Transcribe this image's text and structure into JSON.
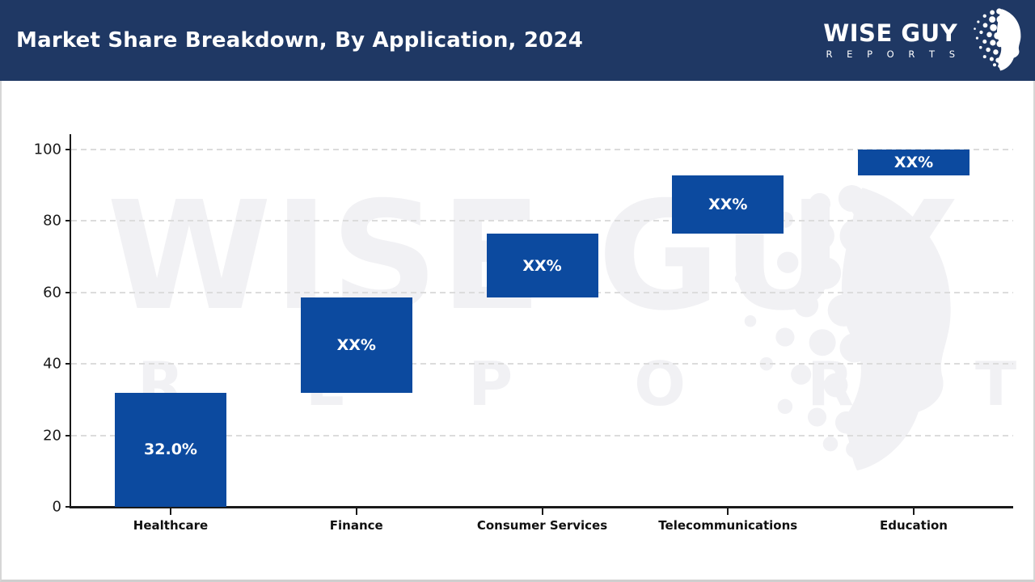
{
  "header": {
    "title": "Market Share Breakdown, By Application, 2024",
    "logo": {
      "primary": "WISE GUY",
      "secondary": "R E P O R T S"
    }
  },
  "watermark": {
    "primary": "WISE GUY",
    "secondary": "REPORTS"
  },
  "chart_data": {
    "type": "bar",
    "subtype": "waterfall",
    "title": "Market Share Breakdown, By Application, 2024",
    "categories": [
      "Healthcare",
      "Finance",
      "Consumer Services",
      "Telecommunications",
      "Education"
    ],
    "segments": [
      {
        "category": "Healthcare",
        "start": 0.0,
        "end": 32.0,
        "value": 32.0,
        "label": "32.0%"
      },
      {
        "category": "Finance",
        "start": 32.0,
        "end": 58.6,
        "value": 26.6,
        "label": "XX%"
      },
      {
        "category": "Consumer Services",
        "start": 58.6,
        "end": 76.4,
        "value": 17.8,
        "label": "XX%"
      },
      {
        "category": "Telecommunications",
        "start": 76.4,
        "end": 92.8,
        "value": 16.4,
        "label": "XX%"
      },
      {
        "category": "Education",
        "start": 92.8,
        "end": 100.0,
        "value": 7.2,
        "label": "XX%"
      }
    ],
    "yticks": [
      0,
      20,
      40,
      60,
      80,
      100
    ],
    "ylim": [
      0,
      100
    ],
    "xlabel": "",
    "ylabel": "",
    "grid": "horizontal-dashed",
    "legend": "none"
  },
  "colors": {
    "header_bg": "#1f3864",
    "bar": "#0c4a9f",
    "bar_label": "#ffffff",
    "axis": "#1a1a1a",
    "grid": "#dcdcdc",
    "watermark": "#f1f1f4",
    "frame_border": "#d6d6d6"
  }
}
